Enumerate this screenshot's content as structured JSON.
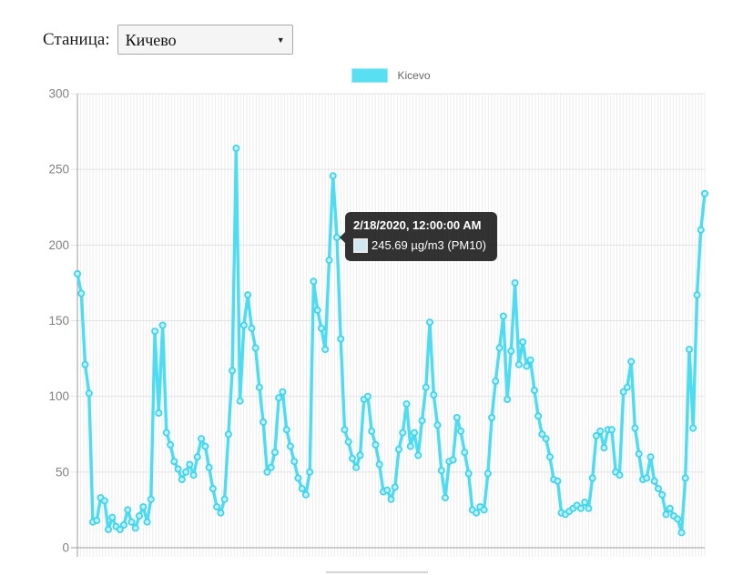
{
  "controls": {
    "station_label": "Станица:",
    "station_value": "Кичево",
    "options": [
      "Кичево"
    ]
  },
  "legend": {
    "label": "Kicevo"
  },
  "tooltip": {
    "title": "2/18/2020, 12:00:00 AM",
    "value_text": "245.69 µg/m3 (PM10)",
    "point_index": 67
  },
  "chart_data": {
    "type": "line",
    "title": "",
    "xlabel": "",
    "ylabel": "",
    "ylim": [
      0,
      300
    ],
    "yticks": [
      300,
      250,
      200,
      150,
      100,
      50,
      0
    ],
    "grid": true,
    "legend_position": "top",
    "x_axis_labels_visible": false,
    "x_note": "hourly PM10 readings; highlighted point is 2/18/2020, 12:00:00 AM",
    "unit": "µg/m3 (PM10)",
    "series": [
      {
        "name": "Kicevo",
        "values": [
          181,
          168,
          121,
          102,
          17,
          18,
          33,
          31,
          12,
          20,
          14,
          12,
          15,
          25,
          17,
          13,
          21,
          27,
          17,
          32,
          143,
          89,
          147,
          76,
          68,
          57,
          52,
          45,
          50,
          55,
          48,
          60,
          72,
          67,
          53,
          39,
          27,
          23,
          32,
          75,
          117,
          264,
          97,
          147,
          167,
          145,
          132,
          106,
          83,
          50,
          53,
          63,
          99,
          103,
          78,
          67,
          57,
          46,
          39,
          35,
          50,
          176,
          157,
          145,
          131,
          190,
          245.69,
          205,
          138,
          78,
          70,
          59,
          53,
          61,
          98,
          100,
          77,
          68,
          55,
          37,
          38,
          32,
          40,
          65,
          76,
          95,
          67,
          76,
          61,
          84,
          106,
          149,
          101,
          81,
          51,
          33,
          57,
          58,
          86,
          77,
          63,
          49,
          25,
          23,
          27,
          25,
          49,
          86,
          110,
          132,
          153,
          98,
          130,
          175,
          121,
          136,
          120,
          124,
          104,
          87,
          75,
          72,
          60,
          45,
          44,
          23,
          22,
          24,
          26,
          28,
          26,
          30,
          26,
          46,
          74,
          77,
          66,
          78,
          78,
          50,
          48,
          103,
          106,
          123,
          79,
          62,
          45,
          46,
          60,
          44,
          39,
          35,
          22,
          26,
          21,
          19,
          10,
          46,
          131,
          79,
          167,
          210,
          234
        ]
      }
    ],
    "colors": {
      "line": "#4ddcf2",
      "marker_stroke": "#41d4ea",
      "marker_fill": "#d2f3fb",
      "legend_swatch": "#58dff2",
      "grid_minor": "#ededed",
      "grid_major": "#e3e3e3",
      "axis": "#9c9c9c",
      "tick_label": "#808080",
      "tooltip_bg": "rgba(0,0,0,0.8)"
    }
  }
}
